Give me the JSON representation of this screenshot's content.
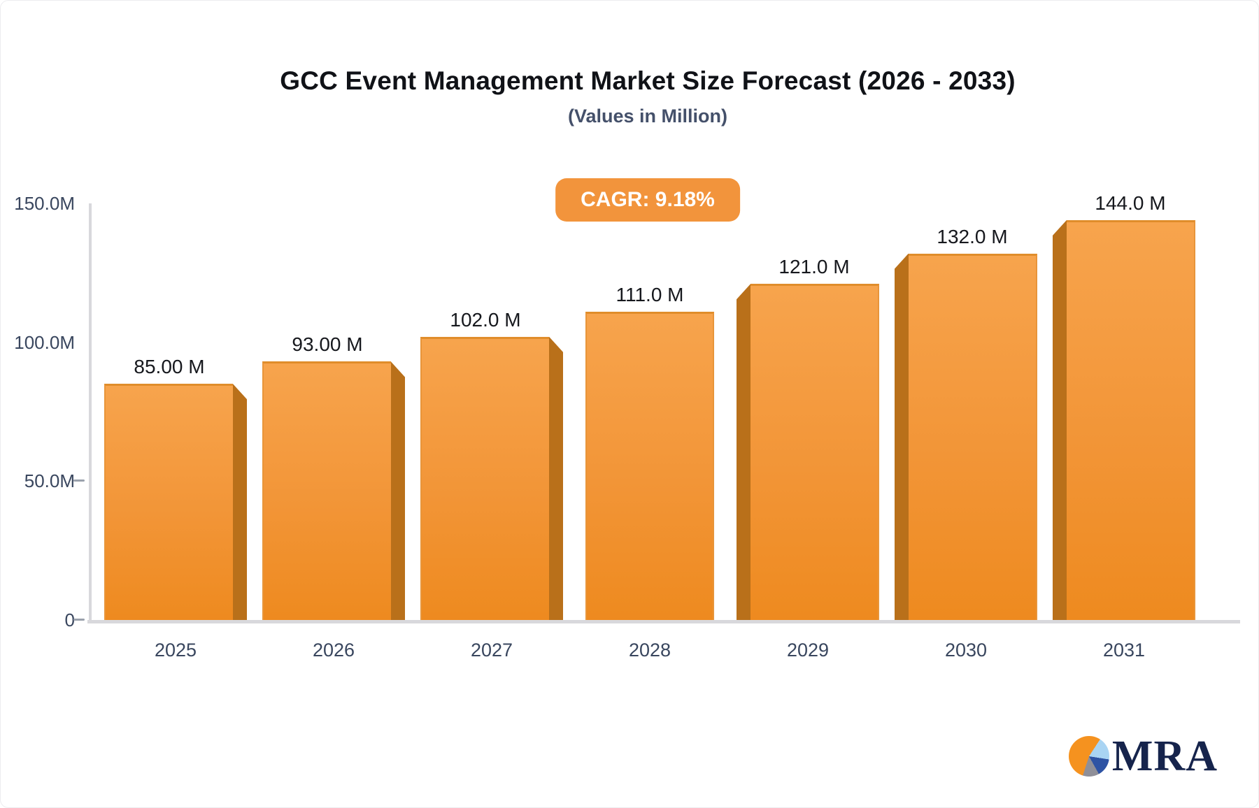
{
  "chart_data": {
    "type": "bar",
    "title": "GCC Event Management Market Size Forecast (2026 - 2033)",
    "subtitle": "(Values in Million)",
    "cagr_label": "CAGR: 9.18%",
    "categories": [
      "2025",
      "2026",
      "2027",
      "2028",
      "2029",
      "2030",
      "2031"
    ],
    "values": [
      85,
      93,
      102,
      111,
      121,
      132,
      144
    ],
    "value_labels": [
      "85.00 M",
      "93.00 M",
      "102.0 M",
      "111.0 M",
      "121.0 M",
      "132.0 M",
      "144.0 M"
    ],
    "unit": "Million",
    "ylim": [
      0,
      150
    ],
    "y_ticks": [
      {
        "label": "150.0M",
        "value": 150,
        "has_dash": false
      },
      {
        "label": "100.0M",
        "value": 100,
        "has_dash": false
      },
      {
        "label": "50.0M",
        "value": 50,
        "has_dash": true
      },
      {
        "label": "0",
        "value": 0,
        "has_dash": true
      }
    ],
    "grid": false,
    "legend": false,
    "colors": {
      "bar_face_top": "#F7A44D",
      "bar_face_bottom": "#EE8A1F",
      "bar_side": "#B9701A",
      "badge_bg": "#F2943C",
      "axis_line": "#D8D8DC",
      "tick_label": "#39465E",
      "value_label": "#16181D"
    }
  },
  "logo": {
    "brand": "MRA",
    "pie_colors": {
      "orange": "#F5921F",
      "light_blue": "#A9D4F3",
      "blue": "#2E53A4",
      "gray": "#8F8F98"
    }
  }
}
